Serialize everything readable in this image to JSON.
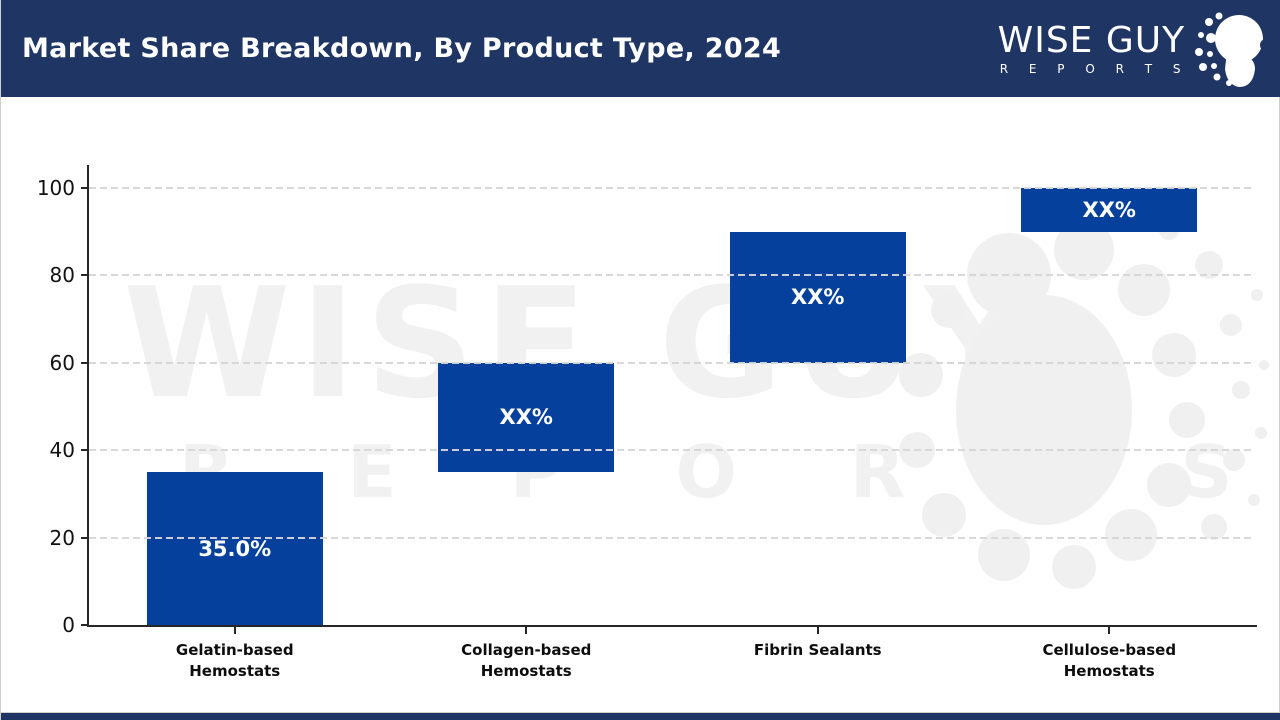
{
  "page": {
    "header": {
      "title": "Market Share Breakdown, By Product Type, 2024",
      "logo": {
        "line1": "WISE GUY",
        "line2": "R E P O R T S"
      }
    },
    "watermark": {
      "line1": "WISE GUY",
      "line2": "R E P O R T S"
    }
  },
  "colors": {
    "header_bg": "#1f3564",
    "footer_bg": "#1f3564",
    "bar_fill": "#05409d",
    "bar_label_text": "#ffffff",
    "axis": "#262626",
    "tick_text": "#111111",
    "gridline": "#d6d6d6",
    "watermark": "#f1f1f1",
    "background": "#ffffff"
  },
  "chart_data": {
    "type": "bar",
    "subtype": "floating-waterfall",
    "title": "Market Share Breakdown, By Product Type, 2024",
    "xlabel": "",
    "ylabel": "",
    "categories": [
      "Gelatin-based\nHemostats",
      "Collagen-based\nHemostats",
      "Fibrin Sealants",
      "Cellulose-based\nHemostats"
    ],
    "segments": [
      {
        "category": "Gelatin-based Hemostats",
        "start": 0,
        "end": 35,
        "value": 35,
        "label": "35.0%"
      },
      {
        "category": "Collagen-based Hemostats",
        "start": 35,
        "end": 60,
        "value": 25,
        "label": "XX%"
      },
      {
        "category": "Fibrin Sealants",
        "start": 60,
        "end": 90,
        "value": 30,
        "label": "XX%"
      },
      {
        "category": "Cellulose-based Hemostats",
        "start": 90,
        "end": 100,
        "value": 10,
        "label": "XX%"
      }
    ],
    "yticks": [
      0,
      20,
      40,
      60,
      80,
      100
    ],
    "ylim": [
      0,
      105
    ],
    "grid": "horizontal-dashed",
    "legend": "none",
    "unit": "%"
  }
}
